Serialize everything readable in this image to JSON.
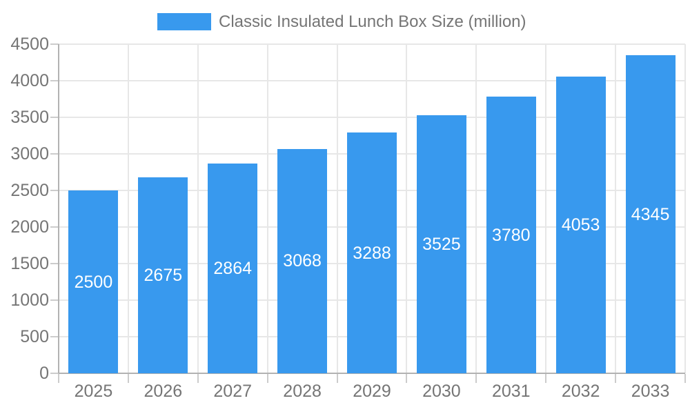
{
  "chart_data": {
    "type": "bar",
    "title": "Classic Insulated Lunch Box Size (million)",
    "categories": [
      "2025",
      "2026",
      "2027",
      "2028",
      "2029",
      "2030",
      "2031",
      "2032",
      "2033"
    ],
    "values": [
      2500,
      2675,
      2864,
      3068,
      3288,
      3525,
      3780,
      4053,
      4345
    ],
    "yticks": [
      0,
      500,
      1000,
      1500,
      2000,
      2500,
      3000,
      3500,
      4000,
      4500
    ],
    "ylim": [
      0,
      4500
    ],
    "xlabel": "",
    "ylabel": "",
    "grid": true,
    "legend_position": "top",
    "value_labels": "centered-inside-bars-white",
    "colors": {
      "bar": "#3899ee",
      "text": "#757575",
      "bar_label_text": "#ffffff",
      "axis_line": "#b2b2b2",
      "grid_line": "#e7e7e7",
      "tick_line": "#cccccc",
      "background": "#ffffff"
    }
  }
}
